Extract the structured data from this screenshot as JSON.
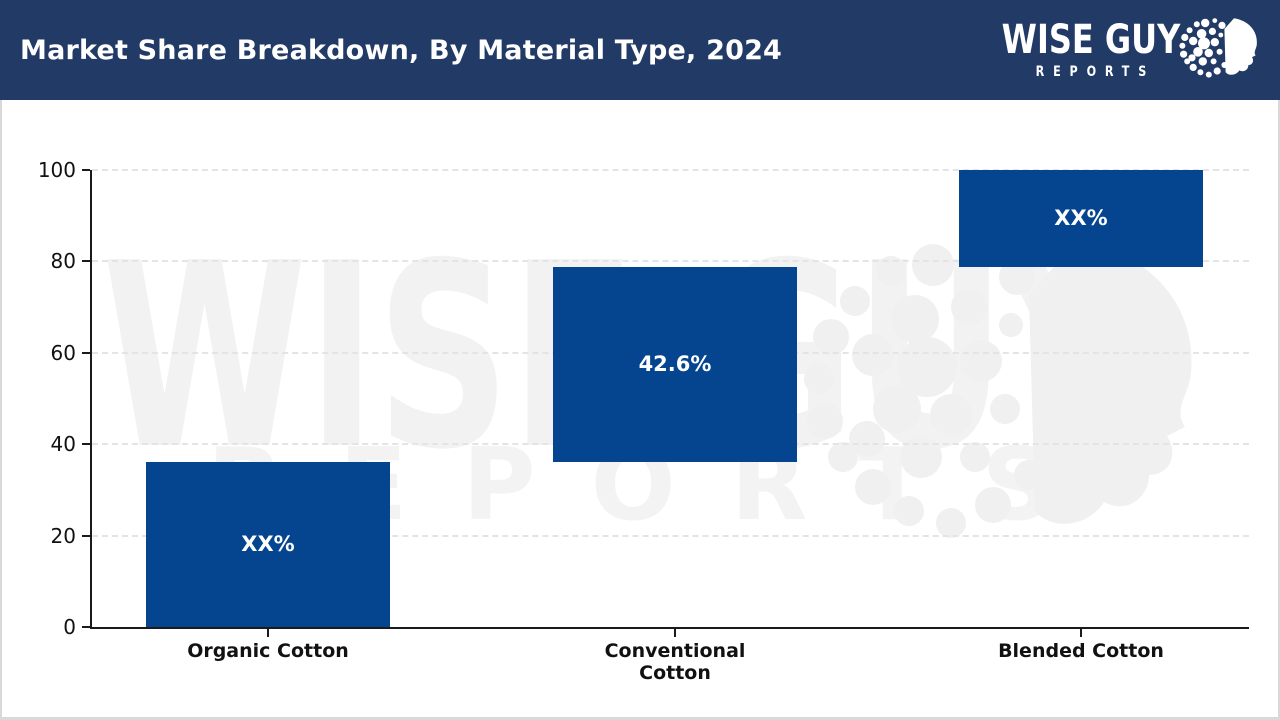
{
  "header": {
    "title": "Market Share Breakdown, By Material Type, 2024",
    "bg_color": "#213a66",
    "logo": {
      "name": "WISE GUY",
      "subtext": "REPORTS"
    }
  },
  "watermark": {
    "line1": "WISE GUY",
    "line2": "REPORTS"
  },
  "chart_data": {
    "type": "bar",
    "subtype": "floating-stacked-waterfall",
    "title": "Market Share Breakdown, By Material Type, 2024",
    "categories": [
      "Organic Cotton",
      "Conventional\nCotton",
      "Blended Cotton"
    ],
    "values": [
      {
        "category": "Organic Cotton",
        "start": 0,
        "end": 36.2,
        "height": 36.2,
        "label": "XX%"
      },
      {
        "category": "Conventional Cotton",
        "start": 36.2,
        "end": 78.8,
        "height": 42.6,
        "label": "42.6%"
      },
      {
        "category": "Blended Cotton",
        "start": 78.8,
        "end": 100,
        "height": 21.2,
        "label": "XX%"
      }
    ],
    "ylim": [
      0,
      100
    ],
    "yticks": [
      0,
      20,
      40,
      60,
      80,
      100
    ],
    "xlabel": "",
    "ylabel": "",
    "bar_color": "#05458f",
    "value_label_color": "#ffffff",
    "grid": "horizontal-dashed",
    "legend": "none"
  }
}
